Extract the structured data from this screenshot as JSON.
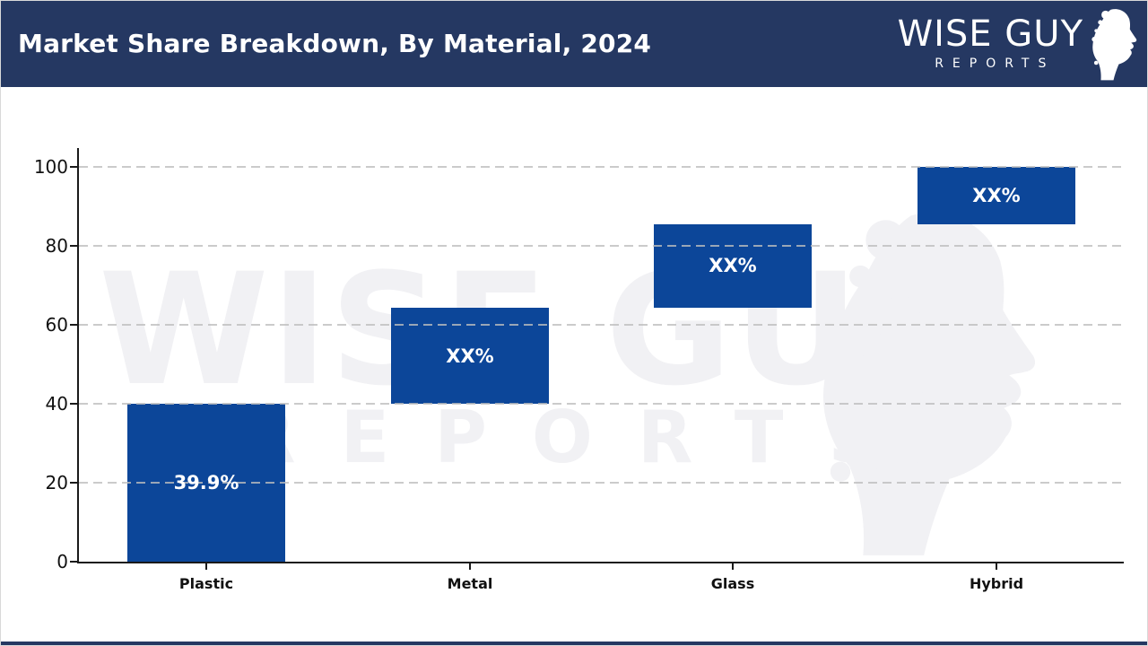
{
  "header": {
    "title": "Market Share Breakdown, By Material, 2024",
    "logo": {
      "line1": "WISE GUY",
      "line2": "REPORTS"
    }
  },
  "watermark": {
    "line1": "WISE GUY",
    "line2": "REPORTS"
  },
  "colors": {
    "header_bg": "#253862",
    "bar": "#0c4699",
    "bar_label": "#ffffff",
    "gridline": "#d9d9d9",
    "axis": "#1a1a1a",
    "watermark": "#f1f1f4"
  },
  "chart_data": {
    "type": "bar",
    "subtype": "waterfall",
    "title": "Market Share Breakdown, By Material, 2024",
    "categories": [
      "Plastic",
      "Metal",
      "Glass",
      "Hybrid"
    ],
    "segments": [
      {
        "category": "Plastic",
        "start": 0,
        "end": 39.9,
        "label": "39.9%"
      },
      {
        "category": "Metal",
        "start": 39.9,
        "end": 64.4,
        "label": "XX%"
      },
      {
        "category": "Glass",
        "start": 64.4,
        "end": 85.5,
        "label": "XX%"
      },
      {
        "category": "Hybrid",
        "start": 85.5,
        "end": 100,
        "label": "XX%"
      }
    ],
    "xlabel": "",
    "ylabel": "",
    "ylim": [
      0,
      105
    ],
    "yticks": [
      0,
      20,
      40,
      60,
      80,
      100
    ],
    "grid": "horizontal-dashed-over-bars",
    "legend": "none"
  }
}
